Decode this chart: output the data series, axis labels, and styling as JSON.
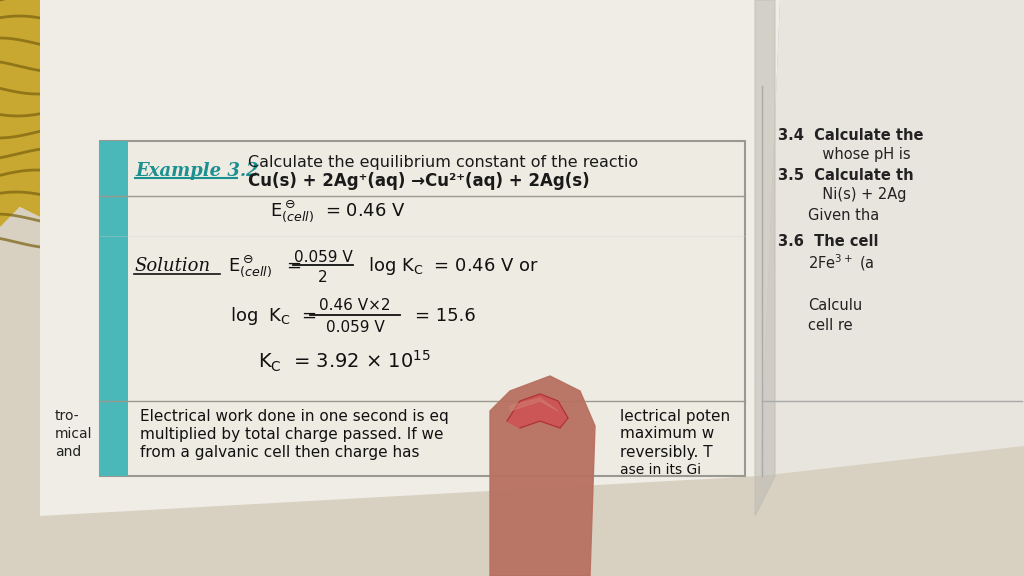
{
  "bg_color": "#d8d0c0",
  "page_bg_left": "#e8e4dc",
  "page_bg_right": "#dcdad4",
  "box_bg": "#e8e4dc",
  "box_border": "#999990",
  "teal_bar": "#4ab8b8",
  "example_label": "Example 3.2",
  "example_label_color": "#1a9090",
  "title_line1": "Calculate the equilibrium constant of the reactio",
  "title_line2": "Cu(s) + 2Ag⁺(aq) →Cu²⁺(aq) + 2Ag(s)",
  "solution_label": "Solution",
  "side_text1": "3.4  Calculate the",
  "side_text2": "       whose pH is",
  "side_text3": "3.5  Calculate th",
  "side_text4": "       Ni(s) + 2Ag",
  "side_text5": "       Given tha",
  "side_text6": "3.6  The cell",
  "side_text7": "       2Fe³⁺ (a",
  "side_text8": "       Calculu",
  "side_text9": "       cell re",
  "bottom_text1": "Electrical work done in one second is eq",
  "bottom_text2": "multiplied by total charge passed. If we",
  "bottom_text3": "from a galvanic cell then charge has",
  "bottom_col1_1": "tro-",
  "bottom_col1_2": "mical",
  "bottom_col1_3": "and",
  "bottom_right1": "lectrical poten",
  "bottom_right2": "maximum w",
  "bottom_right3": "reversibly. T",
  "bottom_right4": "ase in its Gi",
  "fabric_color": "#c8a830",
  "fabric_stripe": "#7a6010",
  "gray_area": "#b8b8b8",
  "spine_color": "#a0a0a0"
}
